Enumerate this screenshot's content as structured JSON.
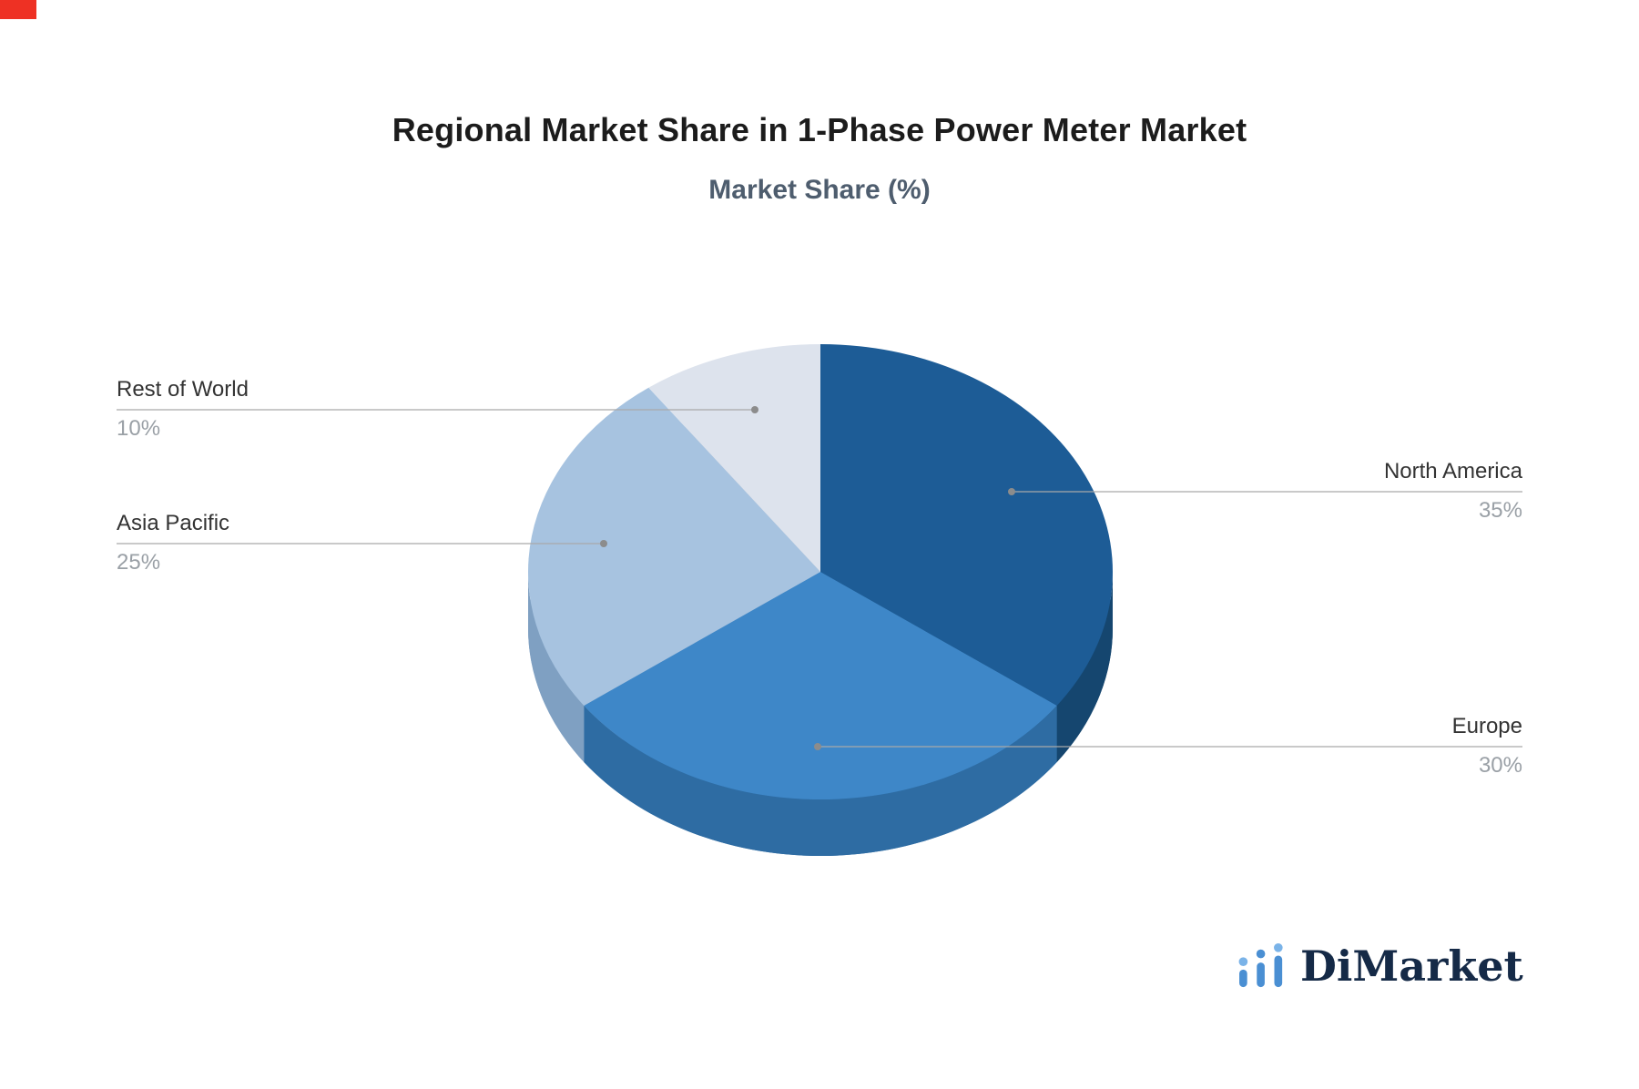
{
  "chart_data": {
    "type": "pie",
    "title": "Regional Market Share in 1-Phase Power Meter Market",
    "subtitle": "Market Share (%)",
    "unit": "%",
    "style": "3d-pie",
    "start_angle_deg": 0,
    "direction": "clockwise",
    "legend": "none",
    "series": [
      {
        "label": "North America",
        "value": 35,
        "percent_label": "35%",
        "color": "#1d5c96",
        "depth_color": "#15466f"
      },
      {
        "label": "Europe",
        "value": 30,
        "percent_label": "30%",
        "color": "#3e87c8",
        "depth_color": "#2e6ca3"
      },
      {
        "label": "Asia Pacific",
        "value": 25,
        "percent_label": "25%",
        "color": "#a7c3e0",
        "depth_color": "#7fa0c2"
      },
      {
        "label": "Rest of World",
        "value": 10,
        "percent_label": "10%",
        "color": "#dde3ed",
        "depth_color": "#b9c3d3"
      }
    ],
    "label_style": {
      "name_color": "#333333",
      "percent_color": "#9aa0a6",
      "line_color": "#a9a9a9"
    }
  },
  "logo": {
    "text": "DiMarket",
    "icon": "mini-bar-chart-icon",
    "text_color": "#152a47",
    "icon_color": "#4a8fd3"
  }
}
